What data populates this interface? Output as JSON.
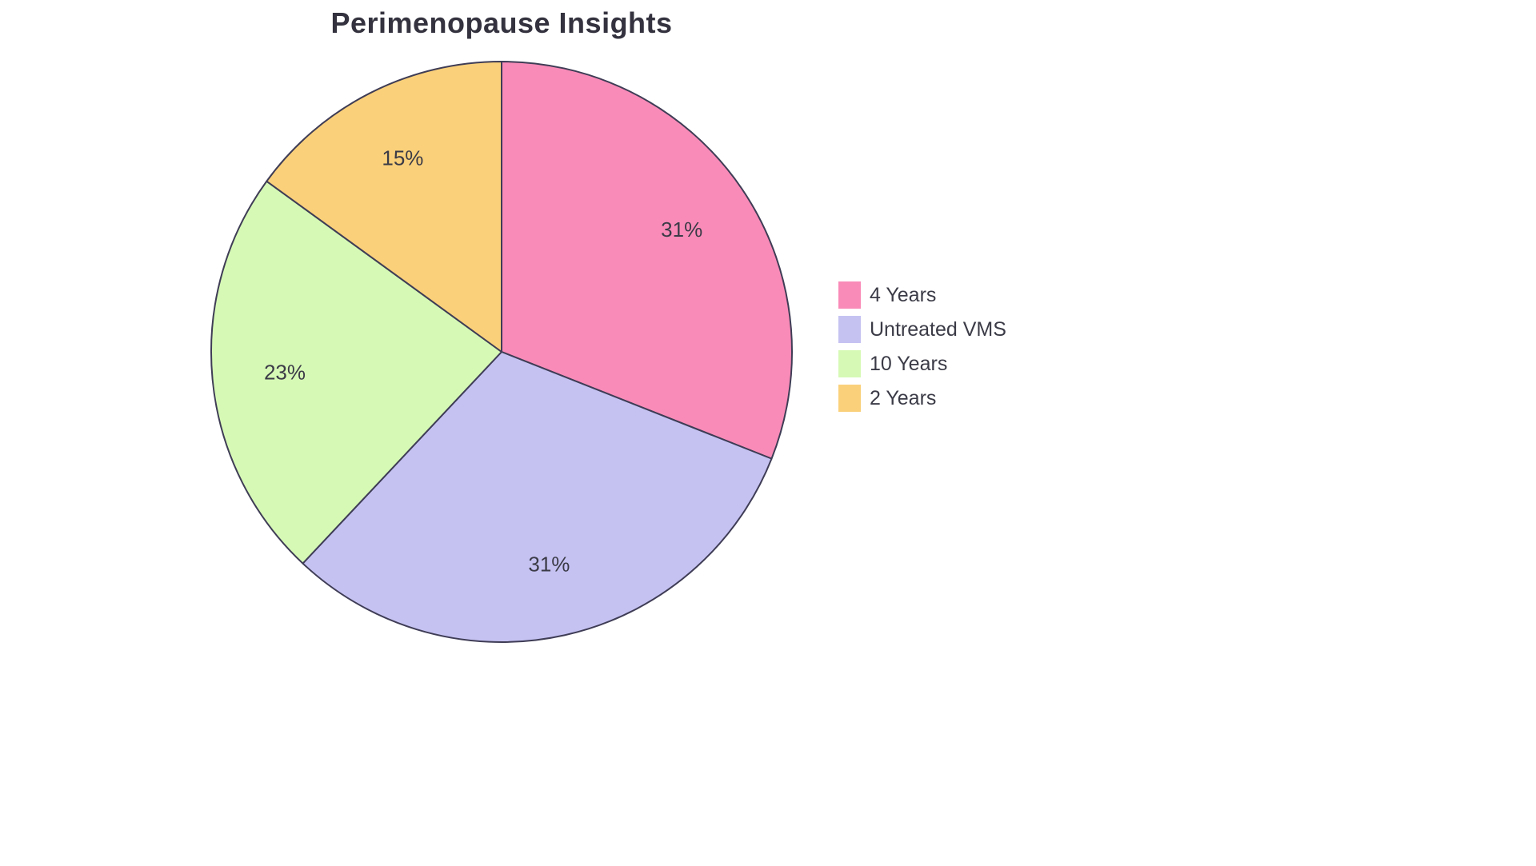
{
  "page": {
    "background_color": "#FFFFFF"
  },
  "chart_data": {
    "type": "pie",
    "title": "Perimenopause Insights",
    "legend_position": "right",
    "start_angle_deg": 0,
    "direction": "clockwise",
    "stroke_color": "#3F3D56",
    "label_color": "#3B3B47",
    "title_color": "#33323E",
    "slices": [
      {
        "label": "4 Years",
        "value": 31,
        "percent_label": "31%",
        "color": "#F98BB8"
      },
      {
        "label": "Untreated VMS",
        "value": 31,
        "percent_label": "31%",
        "color": "#C5C2F2"
      },
      {
        "label": "10 Years",
        "value": 23,
        "percent_label": "23%",
        "color": "#D6F9B5"
      },
      {
        "label": "2 Years",
        "value": 15,
        "percent_label": "15%",
        "color": "#FAD07A"
      }
    ]
  }
}
